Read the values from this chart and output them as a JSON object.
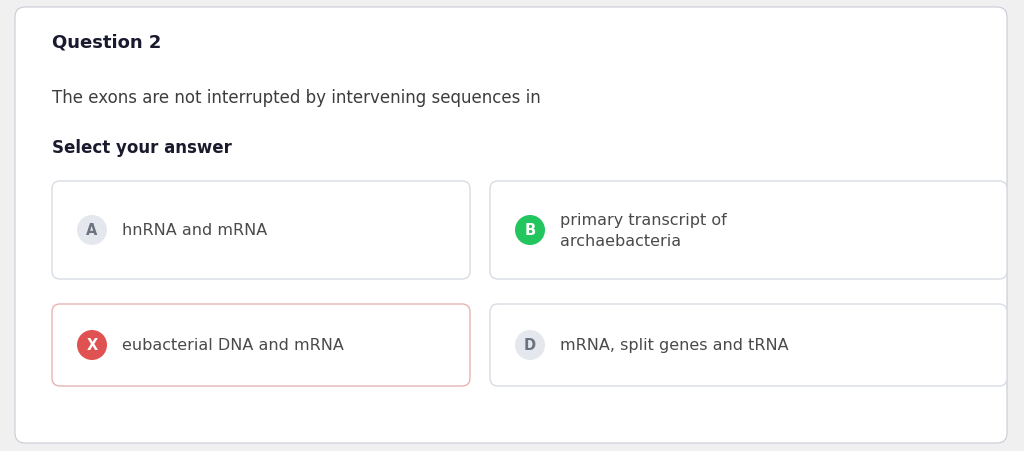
{
  "background_color": "#f0f0f0",
  "card_color": "#ffffff",
  "question_number": "Question 2",
  "question_text": "The exons are not interrupted by intervening sequences in",
  "select_label": "Select your answer",
  "options": [
    {
      "letter": "A",
      "text": "hnRNA and mRNA",
      "letter_bg": "#e4e7ed",
      "letter_color": "#6b7280",
      "border_color": "#d8dce3",
      "bg_color": "#ffffff",
      "wrong": false
    },
    {
      "letter": "B",
      "text": "primary transcript of\narchaebacteria",
      "letter_bg": "#22c55e",
      "letter_color": "#ffffff",
      "border_color": "#d8dce3",
      "bg_color": "#ffffff",
      "wrong": false
    },
    {
      "letter": "X",
      "text": "eubacterial DNA and mRNA",
      "letter_bg": "#e05252",
      "letter_color": "#ffffff",
      "border_color": "#e8b4b4",
      "bg_color": "#ffffff",
      "wrong": true
    },
    {
      "letter": "D",
      "text": "mRNA, split genes and tRNA",
      "letter_bg": "#e4e7ed",
      "letter_color": "#6b7280",
      "border_color": "#d8dce3",
      "bg_color": "#ffffff",
      "wrong": false
    }
  ],
  "question_number_fontsize": 13,
  "question_text_fontsize": 12,
  "select_label_fontsize": 12,
  "option_text_fontsize": 11.5
}
